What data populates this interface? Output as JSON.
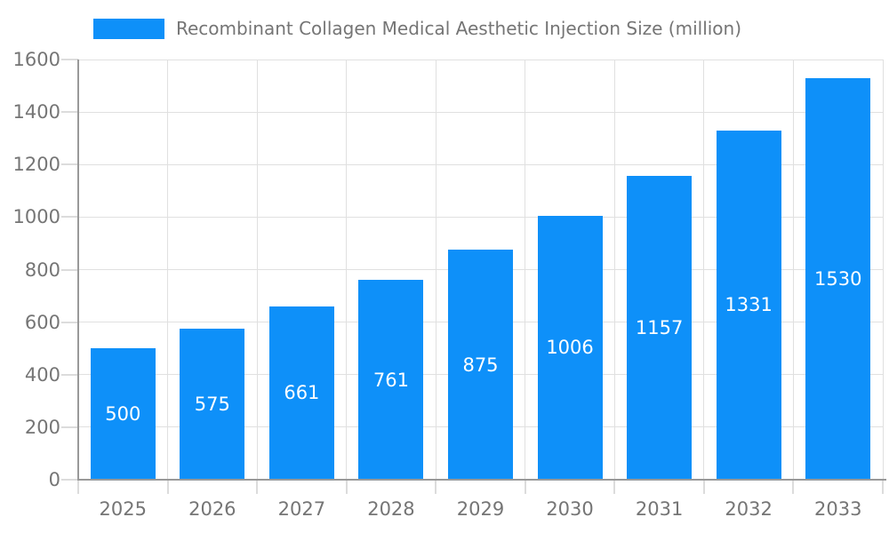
{
  "chart_data": {
    "type": "bar",
    "title": "Recombinant Collagen Medical Aesthetic Injection Size (million)",
    "legend": [
      "Recombinant Collagen Medical Aesthetic Injection Size (million)"
    ],
    "legend_position": "top-left",
    "categories": [
      "2025",
      "2026",
      "2027",
      "2028",
      "2029",
      "2030",
      "2031",
      "2032",
      "2033"
    ],
    "values": [
      500,
      575,
      661,
      761,
      875,
      1006,
      1157,
      1331,
      1530
    ],
    "xlabel": "",
    "ylabel": "",
    "ylim": [
      0,
      1600
    ],
    "ytick_step": 200,
    "ytick_labels": [
      "0",
      "200",
      "400",
      "600",
      "800",
      "1000",
      "1200",
      "1400",
      "1600"
    ],
    "grid": true,
    "value_labels_inside_bars": true,
    "colors": {
      "bar": "#0E90F9",
      "bar_value_label": "#ffffff",
      "axis_line": "#999999",
      "grid_line": "#e0e0e0",
      "tick_mark": "#dcdcdc",
      "axis_text": "#757575",
      "title_text": "#757575",
      "background": "#ffffff"
    }
  }
}
